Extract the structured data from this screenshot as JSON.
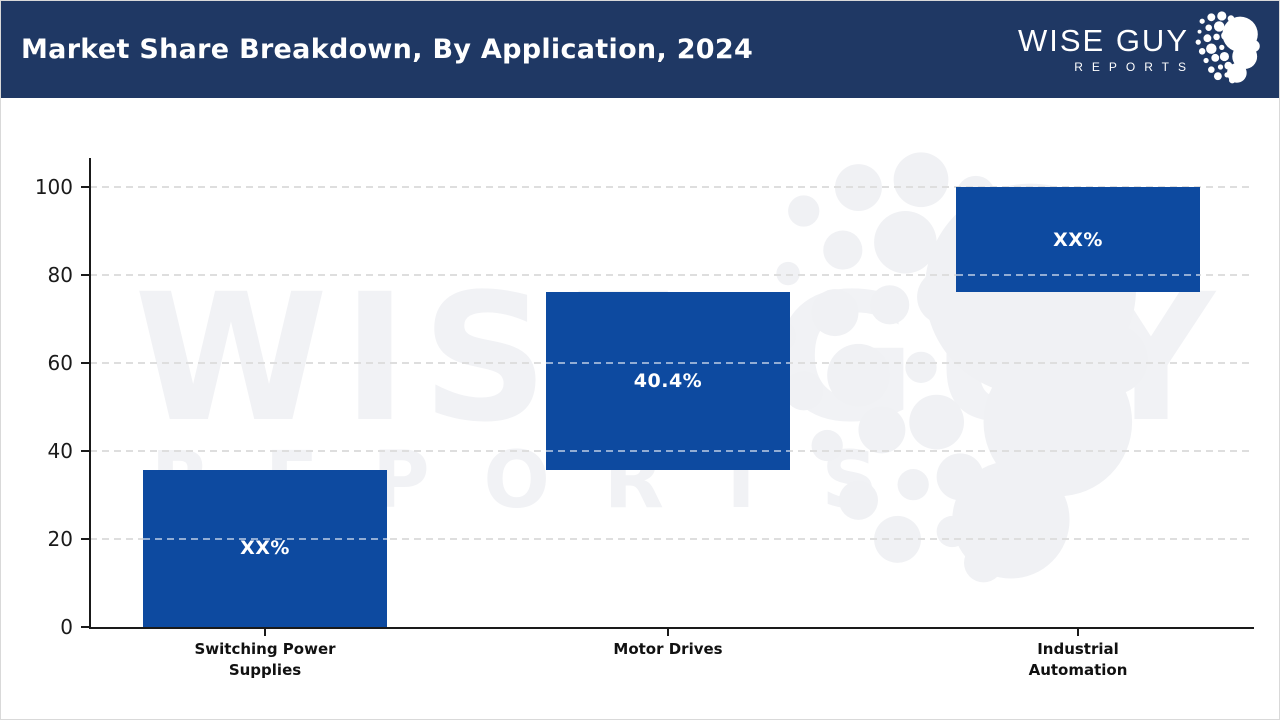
{
  "header": {
    "title": "Market Share Breakdown, By Application, 2024",
    "logo": {
      "line1": "WISE GUY",
      "line2": "REPORTS",
      "icon": "wiseguy-face-icon"
    }
  },
  "watermark": {
    "line1": "WISE GUY",
    "line2": "REPORTS",
    "icon": "wiseguy-face-watermark"
  },
  "colors": {
    "header_bg": "#1f3864",
    "bar": "#0d4aa0",
    "bar_label": "#ffffff",
    "grid": "#dedede",
    "axis": "#1a1a1a",
    "watermark": "#f1f2f5"
  },
  "chart_data": {
    "type": "bar",
    "variant": "floating segment bars (cumulative market-share breakdown)",
    "title": "Market Share Breakdown, By Application, 2024",
    "xlabel": "",
    "ylabel": "",
    "ylim": [
      0,
      100
    ],
    "yticks": [
      0,
      20,
      40,
      60,
      80,
      100
    ],
    "grid": "horizontal dashed, drawn over bars",
    "legend": false,
    "bar_color": "#0d4aa0",
    "label_color": "#ffffff",
    "categories": [
      "Switching Power Supplies",
      "Motor Drives",
      "Industrial Automation"
    ],
    "category_lines": [
      [
        "Switching Power",
        "Supplies"
      ],
      [
        "Motor Drives"
      ],
      [
        "Industrial",
        "Automation"
      ]
    ],
    "bars": [
      {
        "category": "Switching Power Supplies",
        "start": 0,
        "end": 35.7,
        "label": "XX%"
      },
      {
        "category": "Motor Drives",
        "start": 35.7,
        "end": 76.1,
        "label": "40.4%"
      },
      {
        "category": "Industrial Automation",
        "start": 76.1,
        "end": 100,
        "label": "XX%"
      }
    ]
  }
}
